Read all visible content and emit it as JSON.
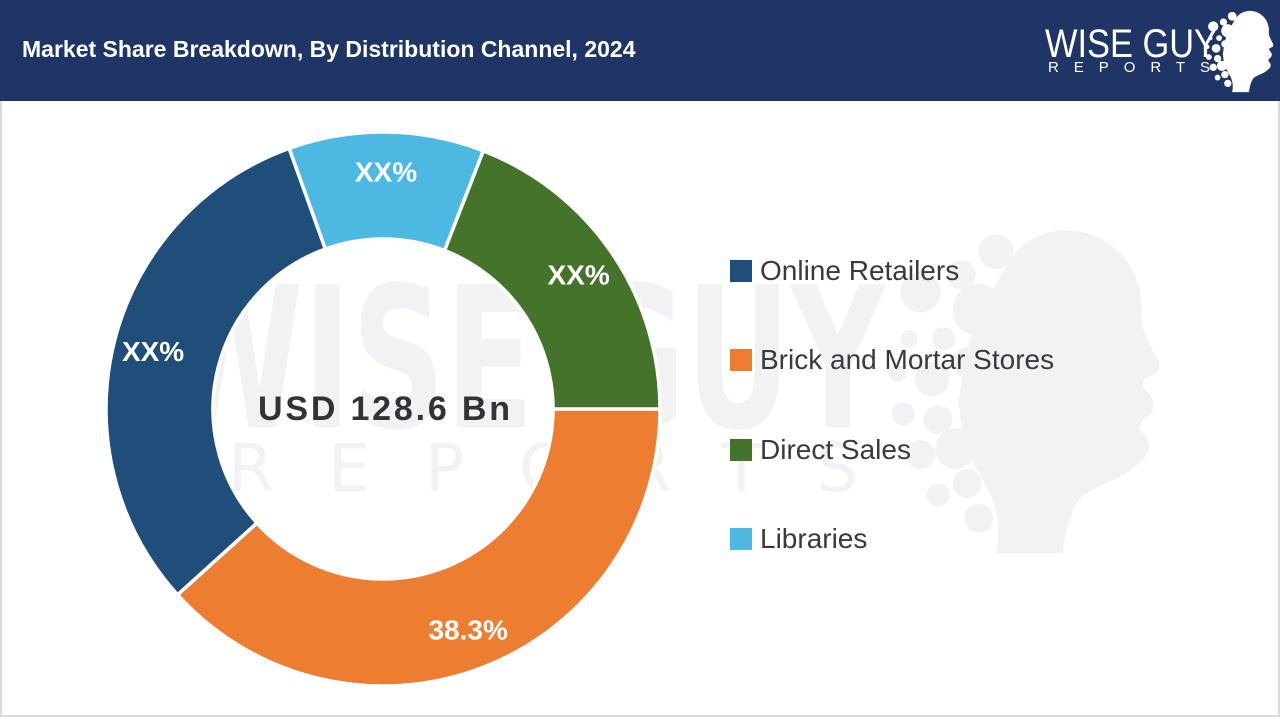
{
  "header": {
    "title": "Market Share Breakdown, By Distribution Channel, 2024",
    "bg_color": "#1F3565",
    "logo": {
      "line1": "WISE GUY",
      "line2": "REPORTS"
    }
  },
  "chart_data": {
    "type": "pie",
    "subtype": "donut",
    "title": "Market Share Breakdown, By Distribution Channel, 2024",
    "center_label": "USD 128.6 Bn",
    "start_angle_deg": 0,
    "segments": [
      {
        "label": "Brick and Mortar Stores",
        "display": "38.3%",
        "pct": 38.3,
        "color": "#ED7D31"
      },
      {
        "label": "Online Retailers",
        "display": "XX%",
        "pct": 31.2,
        "color": "#1F4E7A"
      },
      {
        "label": "Libraries",
        "display": "XX%",
        "pct": 11.4,
        "color": "#4DB9E3"
      },
      {
        "label": "Direct Sales",
        "display": "XX%",
        "pct": 19.1,
        "color": "#46732A"
      }
    ],
    "legend": [
      {
        "label": "Online Retailers",
        "color": "#1F4E7A"
      },
      {
        "label": "Brick and Mortar Stores",
        "color": "#ED7D31"
      },
      {
        "label": "Direct Sales",
        "color": "#46732A"
      },
      {
        "label": "Libraries",
        "color": "#4DB9E3"
      }
    ]
  },
  "watermark": {
    "line1": "WISE GUY",
    "line2": "REPORTS",
    "color": "#f2f2f4"
  }
}
